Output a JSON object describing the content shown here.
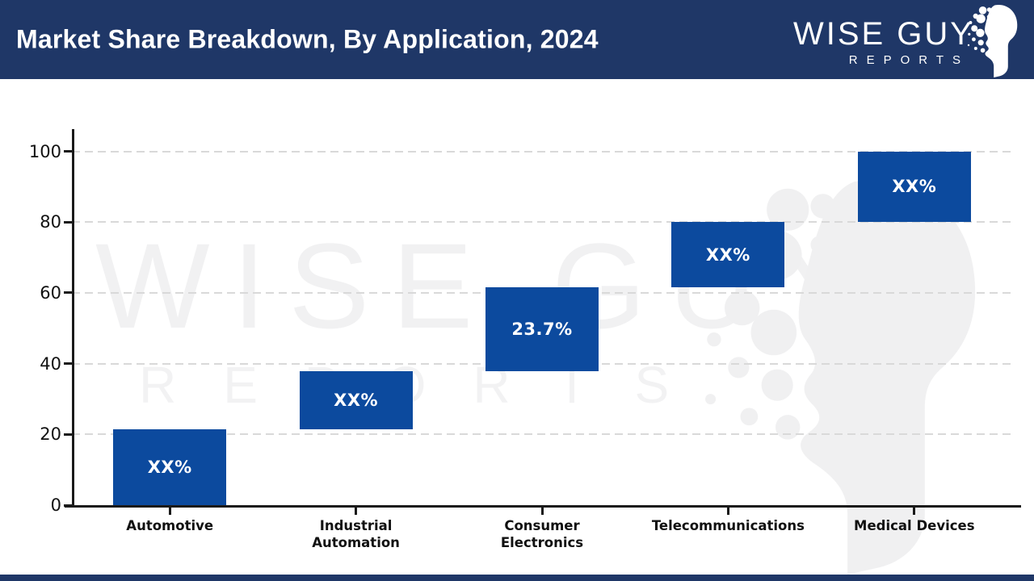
{
  "header": {
    "title": "Market Share Breakdown, By Application, 2024",
    "brand": {
      "line1": "WISE GUY",
      "line2": "REPORTS"
    }
  },
  "watermark": {
    "line1": "WISE GUY",
    "line2": "REPORTS"
  },
  "colors": {
    "header_bg": "#1f3767",
    "footer_bg": "#1f3767",
    "bar": "#0c4a9e",
    "bar_label": "#ffffff",
    "gridline": "#d9d9d9",
    "axis": "#1a1a1a",
    "tick_label": "#111111",
    "watermark": "#f1f1f2"
  },
  "chart_data": {
    "type": "bar",
    "subtype": "waterfall",
    "title": "Market Share Breakdown, By Application, 2024",
    "categories": [
      "Automotive",
      "Industrial\nAutomation",
      "Consumer\nElectronics",
      "Telecommunications",
      "Medical Devices"
    ],
    "segments": [
      {
        "category": "Automotive",
        "start": 0,
        "end": 21.5,
        "label": "XX%"
      },
      {
        "category": "Industrial Automation",
        "start": 21.5,
        "end": 37.8,
        "label": "XX%"
      },
      {
        "category": "Consumer Electronics",
        "start": 37.8,
        "end": 61.5,
        "label": "23.7%",
        "value": 23.7
      },
      {
        "category": "Telecommunications",
        "start": 61.5,
        "end": 80,
        "label": "XX%"
      },
      {
        "category": "Medical Devices",
        "start": 80,
        "end": 100,
        "label": "XX%"
      }
    ],
    "xlabel": "",
    "ylabel": "",
    "ylim": [
      0,
      100
    ],
    "yticks": [
      0,
      20,
      40,
      60,
      80,
      100
    ],
    "grid": "horizontal-dashed",
    "legend": "none"
  }
}
